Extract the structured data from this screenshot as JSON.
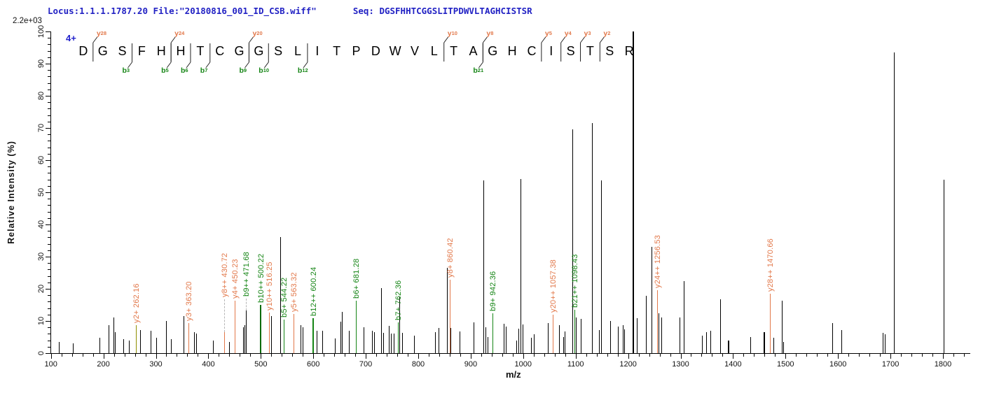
{
  "header": {
    "locus_file": "Locus:1.1.1.1787.20 File:\"20180816_001_ID_CSB.wiff\"",
    "seq_label": "Seq: DGSFHHTCGGSLITPDWVLTAGHCISTSR",
    "max_intensity": "2.2e+03",
    "precursor_charge": "4+"
  },
  "colors": {
    "header_blue": "#2222c4",
    "charge_blue": "#2222cc",
    "y_ion_orange": "#e2784a",
    "b_ion_green": "#158515",
    "b_stem_dark_green": "#0b6b0b",
    "y2_olive": "#8f8f00",
    "peak_black": "#000000",
    "leader_gray": "#b5b5b5"
  },
  "chart_data": {
    "type": "bar",
    "subtype": "ms2-centroid-spectrum",
    "title": "",
    "xlabel": "m/z",
    "ylabel": "Relative  Intensity (%)",
    "xlim": [
      100,
      1850
    ],
    "ylim": [
      0,
      100
    ],
    "x_major_tick_step": 100,
    "x_minor_tick_step": 20,
    "x_major_ticks": [
      100,
      200,
      300,
      400,
      500,
      600,
      700,
      800,
      900,
      1000,
      1100,
      1200,
      1300,
      1400,
      1500,
      1600,
      1700,
      1800
    ],
    "y_major_tick_step": 10,
    "y_minor_tick_step": 2,
    "y_major_ticks": [
      0,
      10,
      20,
      30,
      40,
      50,
      60,
      70,
      80,
      90,
      100
    ],
    "grid": false,
    "legend": false,
    "peptide": {
      "residues": [
        "D",
        "G",
        "S",
        "F",
        "H",
        "H",
        "T",
        "C",
        "G",
        "G",
        "S",
        "L",
        "I",
        "T",
        "P",
        "D",
        "W",
        "V",
        "L",
        "T",
        "A",
        "G",
        "H",
        "C",
        "I",
        "S",
        "T",
        "S",
        "R"
      ],
      "y_cuts": [
        {
          "after": 1,
          "ion": "y",
          "num": "28"
        },
        {
          "after": 5,
          "ion": "y",
          "num": "24"
        },
        {
          "after": 9,
          "ion": "y",
          "num": "20"
        },
        {
          "after": 19,
          "ion": "y",
          "num": "10"
        },
        {
          "after": 21,
          "ion": "y",
          "num": "8"
        },
        {
          "after": 24,
          "ion": "y",
          "num": "5"
        },
        {
          "after": 25,
          "ion": "y",
          "num": "4"
        },
        {
          "after": 26,
          "ion": "y",
          "num": "3"
        },
        {
          "after": 27,
          "ion": "y",
          "num": "2"
        }
      ],
      "b_cuts": [
        {
          "after": 3,
          "ion": "b",
          "num": "3"
        },
        {
          "after": 5,
          "ion": "b",
          "num": "5"
        },
        {
          "after": 6,
          "ion": "b",
          "num": "6"
        },
        {
          "after": 7,
          "ion": "b",
          "num": "7"
        },
        {
          "after": 9,
          "ion": "b",
          "num": "9"
        },
        {
          "after": 10,
          "ion": "b",
          "num": "10"
        },
        {
          "after": 12,
          "ion": "b",
          "num": "12"
        },
        {
          "after": 21,
          "ion": "b",
          "num": "21"
        }
      ]
    },
    "labeled_peaks": [
      {
        "label": "y2+ 262.16",
        "mz": 262.16,
        "stem_pct": 8.7,
        "series": "y",
        "stem_color": "#8f8f00"
      },
      {
        "label": "y3+ 363.20",
        "mz": 363.2,
        "stem_pct": 9.3,
        "series": "y"
      },
      {
        "label": "y8++ 430.72",
        "mz": 430.72,
        "stem_pct": 6.5,
        "series": "y",
        "leader_top_pct": 16.7
      },
      {
        "label": "y4+ 450.23",
        "mz": 450.23,
        "stem_pct": 16.3,
        "series": "y"
      },
      {
        "label": "b9++ 471.68",
        "mz": 471.68,
        "stem_pct": 13.2,
        "series": "b",
        "leader_top_pct": 17.0,
        "stem_color": "#000000"
      },
      {
        "label": "b10++ 500.22",
        "mz": 500.22,
        "stem_pct": 15.0,
        "series": "b",
        "stem_color": "#0b6b0b",
        "stem_w": 2
      },
      {
        "label": "y10++ 516.25",
        "mz": 516.25,
        "stem_pct": 12.6,
        "series": "y"
      },
      {
        "label": "b5+ 544.22",
        "mz": 544.22,
        "stem_pct": 10.4,
        "series": "b"
      },
      {
        "label": "y5+ 563.32",
        "mz": 563.32,
        "stem_pct": 12.2,
        "series": "y"
      },
      {
        "label": "b12++ 600.24",
        "mz": 600.24,
        "stem_pct": 10.9,
        "series": "b",
        "stem_w": 2
      },
      {
        "label": "b6+ 681.28",
        "mz": 681.28,
        "stem_pct": 16.3,
        "series": "b"
      },
      {
        "label": "b7+ 762.36",
        "mz": 762.36,
        "stem_pct": 9.5,
        "series": "b"
      },
      {
        "label": "y8+ 860.42",
        "mz": 860.42,
        "stem_pct": 22.8,
        "series": "y"
      },
      {
        "label": "b9+ 942.36",
        "mz": 942.36,
        "stem_pct": 12.3,
        "series": "b"
      },
      {
        "label": "y20++ 1057.38",
        "mz": 1057.38,
        "stem_pct": 12.0,
        "series": "y"
      },
      {
        "label": "b21++ 1098.43",
        "mz": 1098.43,
        "stem_pct": 13.4,
        "series": "b"
      },
      {
        "label": "y24++ 1256.53",
        "mz": 1256.53,
        "stem_pct": 19.6,
        "series": "y"
      },
      {
        "label": "y28++ 1470.66",
        "mz": 1470.66,
        "stem_pct": 18.5,
        "series": "y"
      }
    ],
    "peaks": [
      [
        116,
        3.5
      ],
      [
        143,
        3
      ],
      [
        193,
        4.7
      ],
      [
        210,
        8.7
      ],
      [
        220,
        11
      ],
      [
        223,
        6.5
      ],
      [
        239,
        4.3
      ],
      [
        249,
        3.9
      ],
      [
        270,
        7.2
      ],
      [
        291,
        6.9
      ],
      [
        302,
        4.7
      ],
      [
        320,
        10
      ],
      [
        330,
        4.3
      ],
      [
        354,
        11.5
      ],
      [
        374,
        6.5
      ],
      [
        378,
        6
      ],
      [
        410,
        4
      ],
      [
        440,
        3.5
      ],
      [
        467,
        8
      ],
      [
        470,
        8.7
      ],
      [
        520,
        11.6
      ],
      [
        537,
        36
      ],
      [
        577,
        8.7
      ],
      [
        581,
        8
      ],
      [
        607,
        7
      ],
      [
        618,
        7
      ],
      [
        642,
        4.5
      ],
      [
        652,
        9.8
      ],
      [
        655,
        12.8
      ],
      [
        669,
        7
      ],
      [
        696,
        8
      ],
      [
        713,
        7
      ],
      [
        717,
        6.5
      ],
      [
        730,
        20.3
      ],
      [
        734,
        6.2
      ],
      [
        744,
        8.5
      ],
      [
        749,
        6
      ],
      [
        754,
        6
      ],
      [
        764,
        17.5
      ],
      [
        770,
        6.2
      ],
      [
        793,
        5.5
      ],
      [
        833,
        6.5
      ],
      [
        840,
        7.8
      ],
      [
        856,
        26.5
      ],
      [
        862,
        7.9
      ],
      [
        880,
        6.8
      ],
      [
        906,
        9.5
      ],
      [
        925,
        53.7
      ],
      [
        929,
        8
      ],
      [
        933,
        5
      ],
      [
        964,
        9.1
      ],
      [
        967,
        8.3
      ],
      [
        988,
        4
      ],
      [
        992,
        7.6
      ],
      [
        996,
        54.1
      ],
      [
        1000,
        9
      ],
      [
        1015,
        4.7
      ],
      [
        1021,
        5.8
      ],
      [
        1047,
        9.4
      ],
      [
        1069,
        8.7
      ],
      [
        1077,
        5
      ],
      [
        1080,
        6.7
      ],
      [
        1095,
        69.5
      ],
      [
        1101,
        11.1
      ],
      [
        1110,
        10.7
      ],
      [
        1132,
        71.5
      ],
      [
        1145,
        7.1
      ],
      [
        1149,
        53.6
      ],
      [
        1167,
        10
      ],
      [
        1181,
        8.2
      ],
      [
        1190,
        8.7
      ],
      [
        1193,
        7.5
      ],
      [
        1210,
        100,
        2
      ],
      [
        1217,
        10.9
      ],
      [
        1235,
        17.8
      ],
      [
        1245,
        33
      ],
      [
        1258,
        12.3
      ],
      [
        1264,
        11
      ],
      [
        1299,
        11
      ],
      [
        1307,
        22.4
      ],
      [
        1342,
        5.4
      ],
      [
        1349,
        6.5
      ],
      [
        1358,
        6.9
      ],
      [
        1376,
        16.7
      ],
      [
        1391,
        4,
        2
      ],
      [
        1433,
        5.1
      ],
      [
        1459,
        6.5,
        2
      ],
      [
        1478,
        4.7
      ],
      [
        1494,
        16.3
      ],
      [
        1496,
        3.5
      ],
      [
        1590,
        9.4
      ],
      [
        1607,
        7.2
      ],
      [
        1686,
        6.2
      ],
      [
        1690,
        5.8
      ],
      [
        1707,
        93.5
      ],
      [
        1802,
        54
      ]
    ]
  }
}
